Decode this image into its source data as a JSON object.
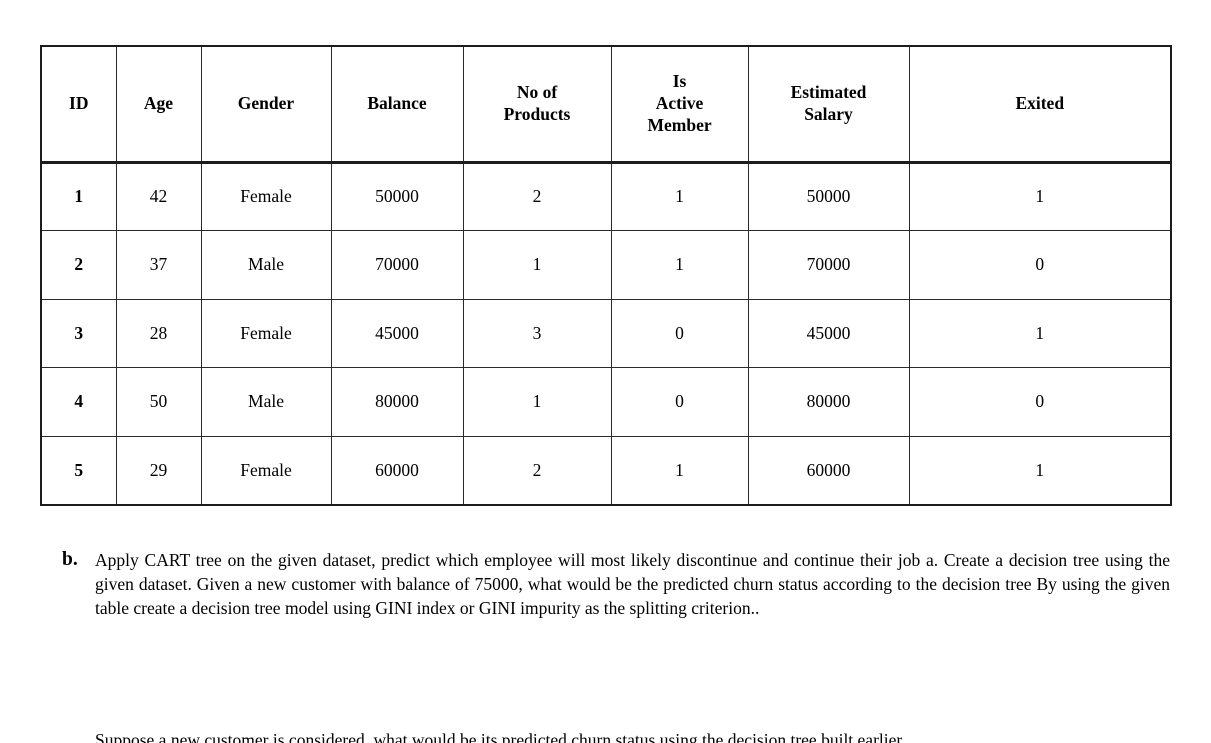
{
  "table": {
    "headers": [
      "ID",
      "Age",
      "Gender",
      "Balance",
      "No of Products",
      "Is Active Member",
      "Estimated Salary",
      "Exited"
    ],
    "rows": [
      [
        "1",
        "42",
        "Female",
        "50000",
        "2",
        "1",
        "50000",
        "1"
      ],
      [
        "2",
        "37",
        "Male",
        "70000",
        "1",
        "1",
        "70000",
        "0"
      ],
      [
        "3",
        "28",
        "Female",
        "45000",
        "3",
        "0",
        "45000",
        "1"
      ],
      [
        "4",
        "50",
        "Male",
        "80000",
        "1",
        "0",
        "80000",
        "0"
      ],
      [
        "5",
        "29",
        "Female",
        "60000",
        "2",
        "1",
        "60000",
        "1"
      ]
    ]
  },
  "question": {
    "label": "b.",
    "text": "Apply CART tree on the given dataset, predict which employee will most likely discontinue and continue their job a. Create a decision tree using the given dataset. Given a new customer with balance of 75000, what would be the predicted churn status according to the decision tree By using the given table create a decision tree model using GINI index or GINI impurity as the splitting criterion.."
  },
  "clipped_line": {
    "text": "Suppose a new customer is considered, what would be its predicted churn status using the decision tree built earlier."
  },
  "colors": {
    "text": "#000000",
    "border": "#1c1c1c",
    "background": "#ffffff"
  }
}
